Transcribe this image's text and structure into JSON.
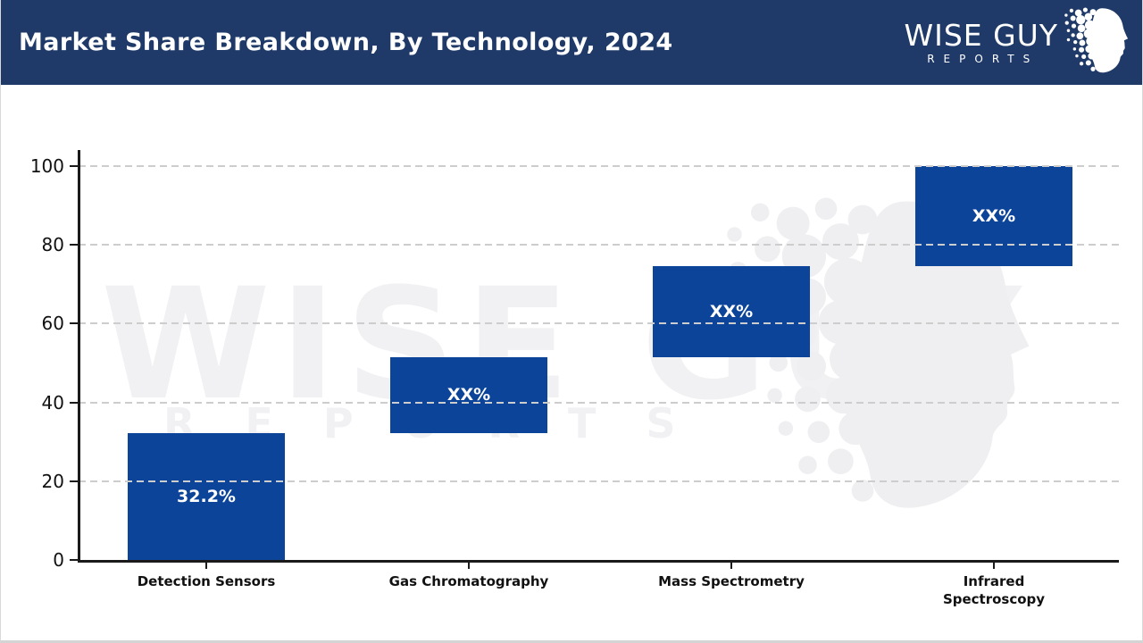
{
  "header": {
    "title": "Market Share Breakdown, By Technology, 2024",
    "logo": {
      "line1": "WISE GUY",
      "line2": "REPORTS"
    }
  },
  "watermark": {
    "line1": "WISE GUY",
    "line2": "REPORTS"
  },
  "chart_data": {
    "type": "bar",
    "subtype": "waterfall",
    "title": "Market Share Breakdown, By Technology, 2024",
    "categories": [
      "Detection Sensors",
      "Gas Chromatography",
      "Mass Spectrometry",
      "Infrared Spectroscopy"
    ],
    "segments": [
      {
        "category": "Detection Sensors",
        "start": 0,
        "end": 32.2,
        "value": 32.2,
        "label": "32.2%"
      },
      {
        "category": "Gas Chromatography",
        "start": 32.2,
        "end": 51.5,
        "value": 19.3,
        "label": "XX%"
      },
      {
        "category": "Mass Spectrometry",
        "start": 51.5,
        "end": 74.7,
        "value": 23.2,
        "label": "XX%"
      },
      {
        "category": "Infrared Spectroscopy",
        "start": 74.7,
        "end": 100,
        "value": 25.3,
        "label": "XX%"
      }
    ],
    "ylim": [
      0,
      100
    ],
    "yticks": [
      0,
      20,
      40,
      60,
      80,
      100
    ],
    "xlabel": "",
    "ylabel": "",
    "grid": "horizontal-dashed",
    "legend": "none"
  },
  "colors": {
    "header_bg": "#1f3a68",
    "bar": "#0c4499",
    "grid": "#cdcdcd",
    "watermark": "#f1f1f4",
    "axis": "#1a1a1a",
    "bar_label_text": "#ffffff"
  }
}
